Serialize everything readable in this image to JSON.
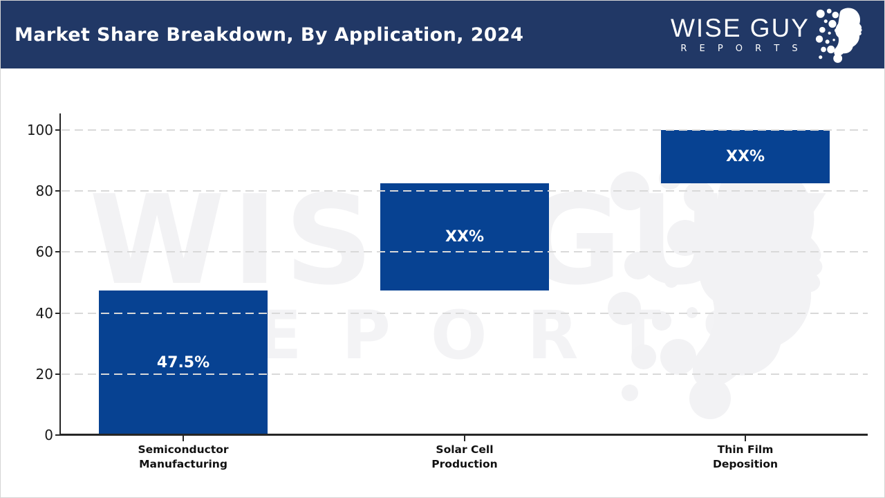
{
  "header": {
    "title": "Market Share Breakdown, By Application, 2024",
    "brand": {
      "line1": "WISE GUY",
      "line2": "R E P O R T S"
    }
  },
  "watermark": {
    "line1": "WISE GUY",
    "line2": "REPORTS"
  },
  "colors": {
    "header_navy": "#213866",
    "bar_blue": "#074292",
    "axis": "#262626",
    "gridline": "#d9d9d9",
    "watermark_gray": "#f2f2f4"
  },
  "chart_data": {
    "type": "bar",
    "subtype": "floating-segment (waterfall style market share breakdown)",
    "title": "Market Share Breakdown, By Application, 2024",
    "categories": [
      [
        "Semiconductor",
        "Manufacturing"
      ],
      [
        "Solar Cell",
        "Production"
      ],
      [
        "Thin Film",
        "Deposition"
      ]
    ],
    "segments": [
      {
        "start": 0,
        "end": 47.5,
        "label": "47.5%"
      },
      {
        "start": 47.5,
        "end": 82.5,
        "label": "XX%"
      },
      {
        "start": 82.5,
        "end": 100,
        "label": "XX%"
      }
    ],
    "ylim": [
      0,
      100
    ],
    "yticks": [
      0,
      20,
      40,
      60,
      80,
      100
    ],
    "xlabel": "",
    "ylabel": "",
    "grid": "dashed horizontal",
    "legend": "none"
  }
}
